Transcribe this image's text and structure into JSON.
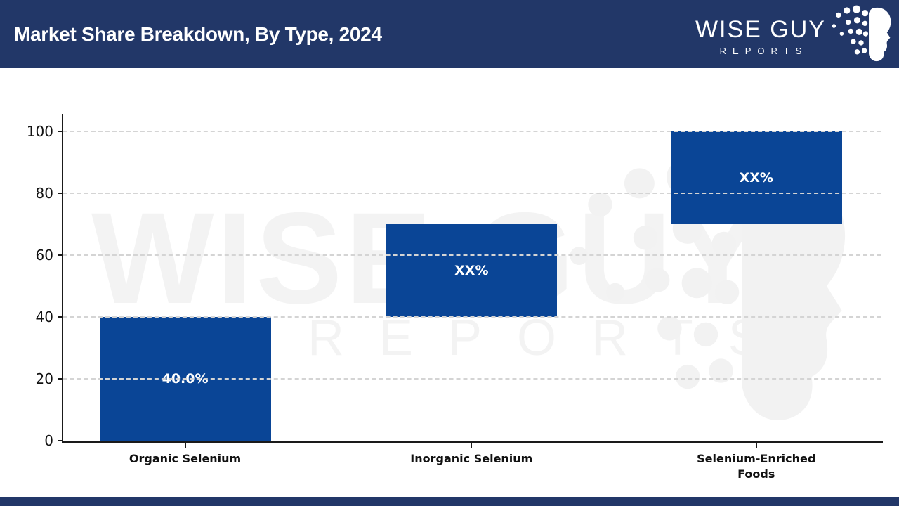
{
  "header": {
    "title": "Market Share Breakdown, By Type, 2024",
    "bg_color": "#223768",
    "brand": {
      "line1": "WISE GUY",
      "line2": "REPORTS"
    }
  },
  "watermark": {
    "line1": "WISE GUY",
    "line2": "REPORTS"
  },
  "chart_data": {
    "type": "bar",
    "subtype": "waterfall",
    "title": "Market Share Breakdown, By Type, 2024",
    "categories": [
      "Organic Selenium",
      "Inorganic Selenium",
      "Selenium-Enriched Foods"
    ],
    "segments": [
      {
        "category": "Organic Selenium",
        "start": 0,
        "end": 40,
        "label": "40.0%"
      },
      {
        "category": "Inorganic Selenium",
        "start": 40,
        "end": 70,
        "label": "XX%"
      },
      {
        "category": "Selenium-Enriched Foods",
        "start": 70,
        "end": 100,
        "label": "XX%"
      }
    ],
    "xlabel": "",
    "ylabel": "",
    "ylim": [
      0,
      105
    ],
    "yticks": [
      0,
      20,
      40,
      60,
      80,
      100
    ],
    "grid": "dashed-horizontal",
    "legend": "none",
    "bar_color": "#0a4596",
    "bar_label_color": "#ffffff",
    "axis_color": "#1a1a1a",
    "grid_color": "#d4d4d4"
  },
  "footer": {
    "bg_color": "#223768"
  }
}
